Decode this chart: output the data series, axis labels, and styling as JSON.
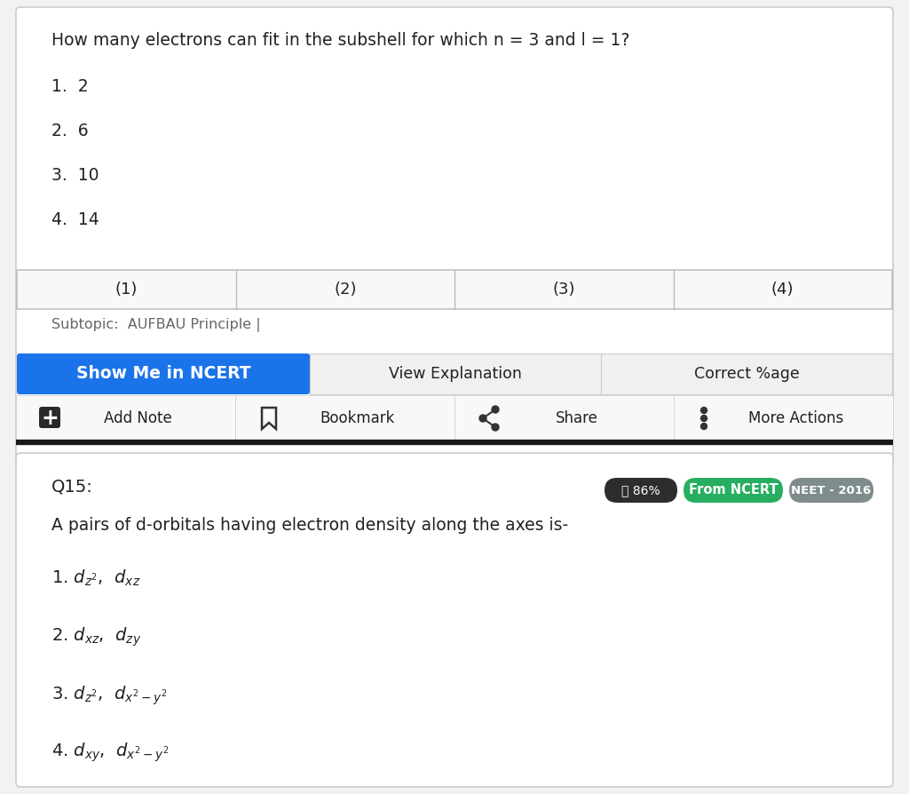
{
  "bg_color": "#f2f2f2",
  "card_bg": "#ffffff",
  "border_color": "#cccccc",
  "question1": "How many electrons can fit in the subshell for which n = 3 and l = 1?",
  "options1": [
    "1.  2",
    "2.  6",
    "3.  10",
    "4.  14"
  ],
  "table_cols": [
    "(1)",
    "(2)",
    "(3)",
    "(4)"
  ],
  "subtopic": "Subtopic:  AUFBAU Principle |",
  "btn_text": "Show Me in NCERT",
  "btn_color": "#1a73e8",
  "btn_text_color": "#ffffff",
  "action_bar": [
    "View Explanation",
    "Correct %age"
  ],
  "bottom_bar": [
    "Add Note",
    "Bookmark",
    "Share",
    "More Actions"
  ],
  "separator_color": "#1a1a1a",
  "q15_label": "Q15:",
  "badge_86_bg": "#2d2d2d",
  "badge_ncert_bg": "#27ae60",
  "badge_ncert_text": "From NCERT",
  "badge_neet_bg": "#7f8c8d",
  "badge_neet_text": "NEET - 2016",
  "question2": "A pairs of d-orbitals having electron density along the axes is-",
  "options2_text": [
    "1. $d_{z^2}$,  $d_{xz}$",
    "2. $d_{xz}$,  $d_{zy}$",
    "3. $d_{z^2}$,  $d_{x^2-y^2}$",
    "4. $d_{xy}$,  $d_{x^2-y^2}$"
  ],
  "text_color": "#212121",
  "gray_text": "#666666"
}
